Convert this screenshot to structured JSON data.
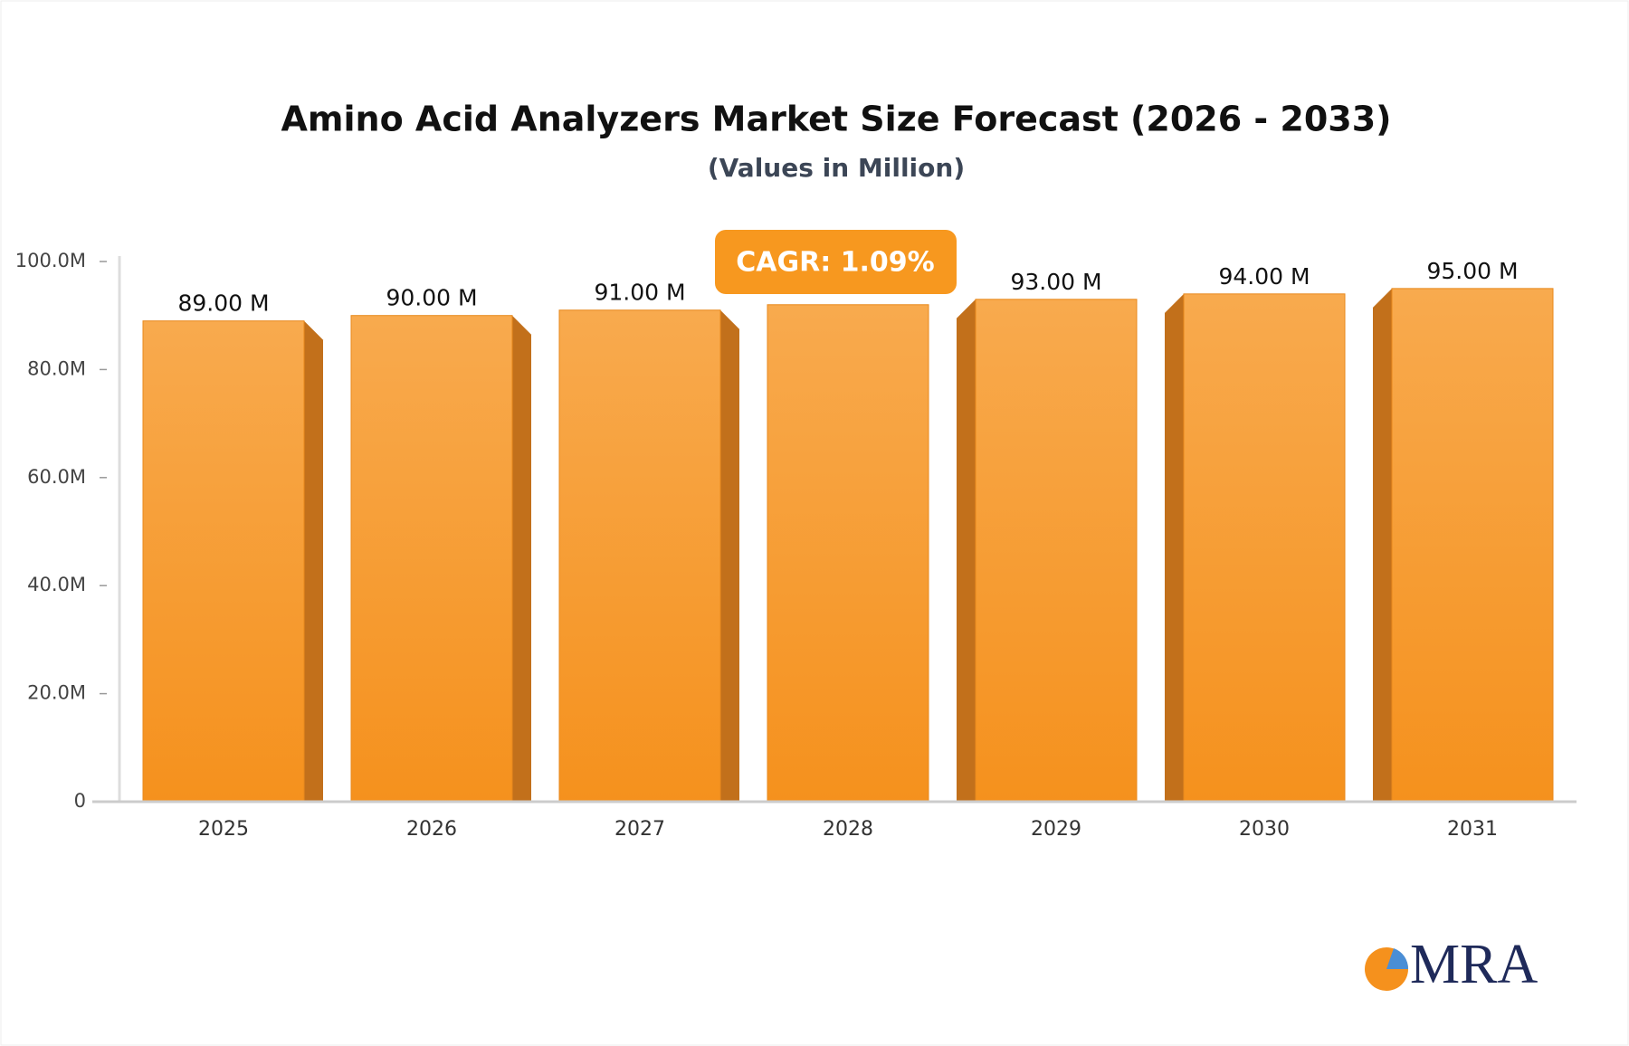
{
  "chart_data": {
    "type": "bar",
    "title": "Amino Acid Analyzers Market Size Forecast (2026 - 2033)",
    "subtitle": "(Values in Million)",
    "categories": [
      "2025",
      "2026",
      "2027",
      "2028",
      "2029",
      "2030",
      "2031"
    ],
    "values": [
      89,
      90,
      91,
      92,
      93,
      94,
      95
    ],
    "value_labels": [
      "89.00 M",
      "90.00 M",
      "91.00 M",
      null,
      "93.00 M",
      "94.00 M",
      "95.00 M"
    ],
    "color": "#f7a038",
    "ylim": [
      0,
      100
    ],
    "yticks": [
      0,
      {
        "value": 20,
        "label": "20.0M"
      },
      {
        "value": 40,
        "label": "40.0M"
      },
      {
        "value": 60,
        "label": "60.0M"
      },
      {
        "value": 80,
        "label": "80.0M"
      },
      {
        "value": 100,
        "label": "100.0M"
      }
    ],
    "annotation": "CAGR: 1.09%",
    "logo": "MRA"
  }
}
